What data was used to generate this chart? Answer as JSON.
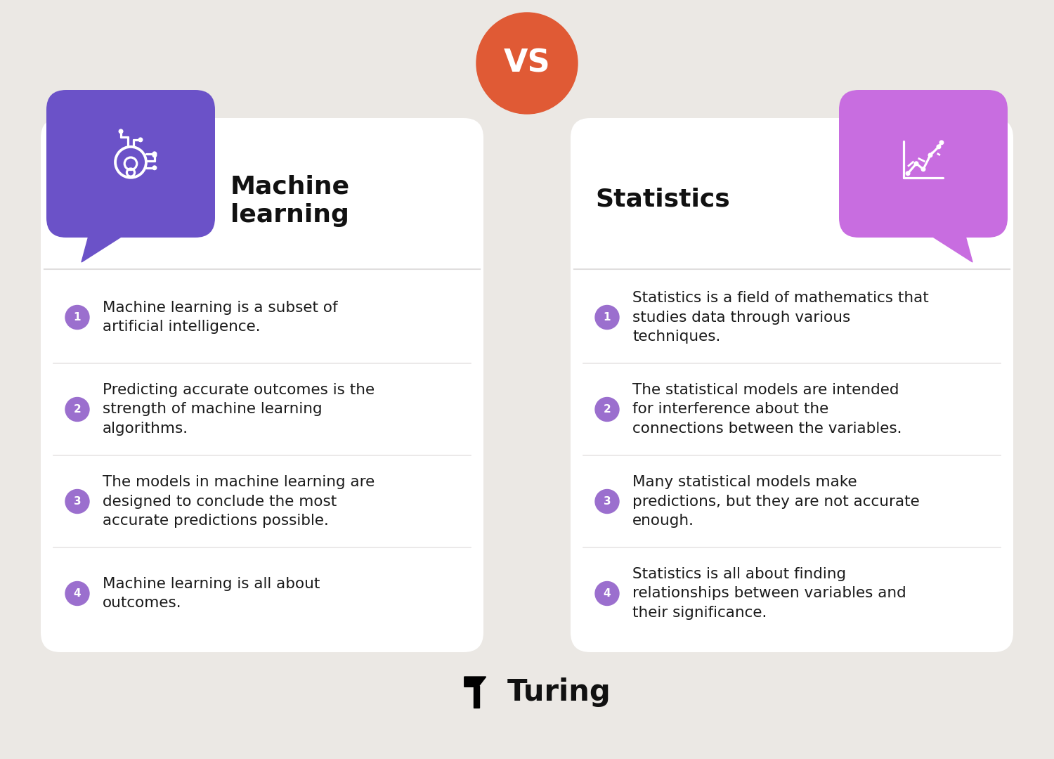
{
  "bg_color": "#ebe8e4",
  "card_color": "#ffffff",
  "left_title": "Machine\nlearning",
  "right_title": "Statistics",
  "bubble_color_left": "#6b52c8",
  "bubble_color_right": "#c86de0",
  "number_circle_color": "#9b6fce",
  "vs_bg_color": "#e05a35",
  "vs_text": "VS",
  "left_items": [
    "Machine learning is a subset of\nartificial intelligence.",
    "Predicting accurate outcomes is the\nstrength of machine learning\nalgorithms.",
    "The models in machine learning are\ndesigned to conclude the most\naccurate predictions possible.",
    "Machine learning is all about\noutcomes."
  ],
  "right_items": [
    "Statistics is a field of mathematics that\nstudies data through various\ntechniques.",
    "The statistical models are intended\nfor interference about the\nconnections between the variables.",
    "Many statistical models make\npredictions, but they are not accurate\nenough.",
    "Statistics is all about finding\nrelationships between variables and\ntheir significance."
  ],
  "turing_text": "Turing",
  "title_fontsize": 26,
  "item_fontsize": 15.5,
  "number_fontsize": 11
}
